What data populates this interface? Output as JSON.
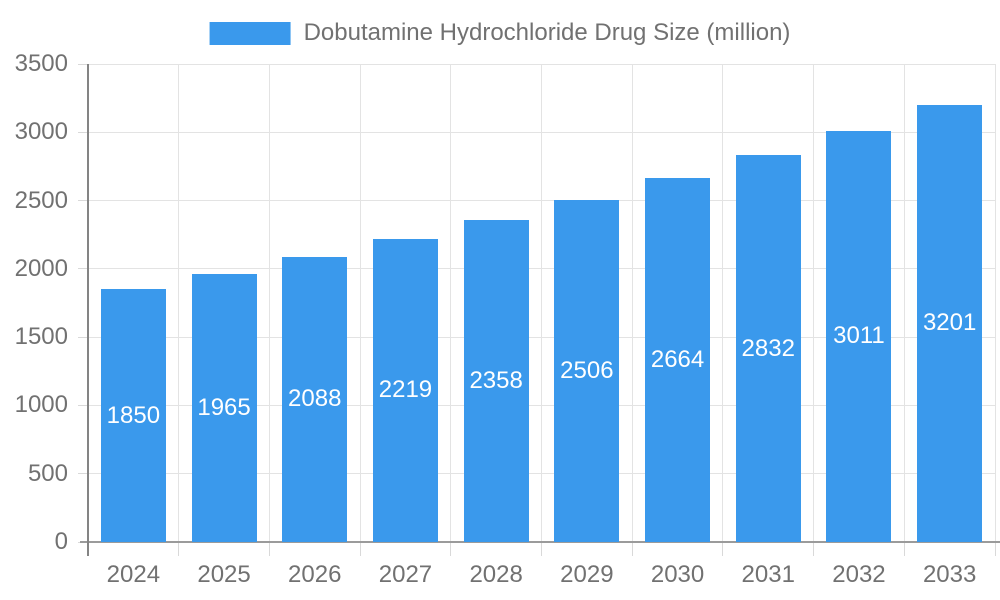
{
  "legend": {
    "label": "Dobutamine Hydrochloride Drug Size (million)"
  },
  "chart_data": {
    "type": "bar",
    "title": "Dobutamine Hydrochloride Drug Size (million)",
    "categories": [
      "2024",
      "2025",
      "2026",
      "2027",
      "2028",
      "2029",
      "2030",
      "2031",
      "2032",
      "2033"
    ],
    "series": [
      {
        "name": "Dobutamine Hydrochloride Drug Size (million)",
        "values": [
          1850,
          1965,
          2088,
          2219,
          2358,
          2506,
          2664,
          2832,
          3011,
          3201
        ]
      }
    ],
    "xlabel": "",
    "ylabel": "",
    "ylim": [
      0,
      3500
    ],
    "ytick_step": 500,
    "yticks": [
      0,
      500,
      1000,
      1500,
      2000,
      2500,
      3000,
      3500
    ],
    "grid": true,
    "legend_position": "top",
    "value_labels": "inside-center"
  },
  "colors": {
    "bar": "#3a99ec",
    "bar_label": "#ffffff",
    "axis_text": "#717171",
    "gridline": "#e3e3e3",
    "tick": "#d9d9d9",
    "x_axis_line": "#9b9b9b",
    "y_axis_line": "#848484",
    "background": "#ffffff"
  }
}
